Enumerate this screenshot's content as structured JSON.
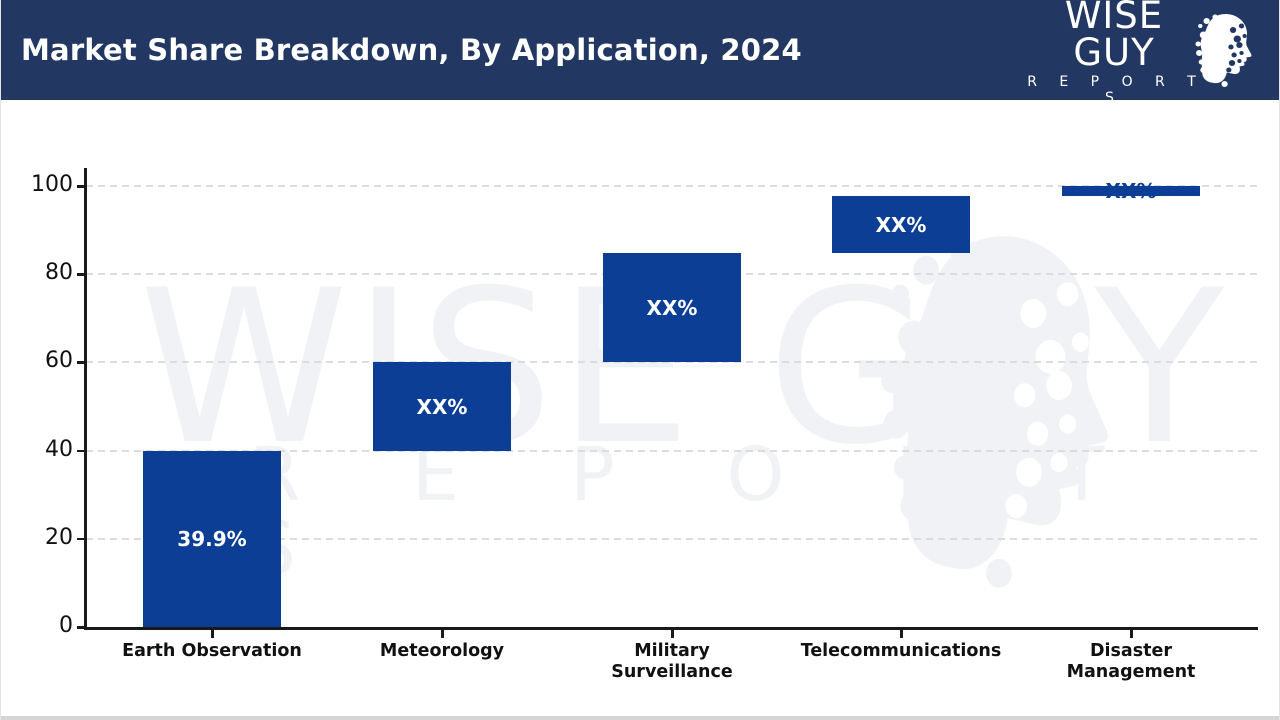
{
  "header": {
    "title": "Market Share Breakdown, By Application, 2024",
    "bg_color": "#223863",
    "logo": {
      "line1": "WISE GUY",
      "line2": "R E P O R T S"
    }
  },
  "watermark": {
    "line1": "WISE GUY",
    "line2": "R E P O R T S"
  },
  "chart_data": {
    "type": "bar",
    "variant": "waterfall",
    "title": "Market Share Breakdown, By Application, 2024",
    "categories": [
      "Earth Observation",
      "Meteorology",
      "Military Surveillance",
      "Telecommunications",
      "Disaster Management"
    ],
    "category_lines": [
      [
        "Earth Observation"
      ],
      [
        "Meteorology"
      ],
      [
        "Military",
        "Surveillance"
      ],
      [
        "Telecommunications"
      ],
      [
        "Disaster",
        "Management"
      ]
    ],
    "segments": [
      {
        "category": "Earth Observation",
        "start": 0,
        "end": 39.9,
        "value": 39.9,
        "label": "39.9%"
      },
      {
        "category": "Meteorology",
        "start": 39.9,
        "end": 60.0,
        "value": 20.1,
        "label": "XX%"
      },
      {
        "category": "Military Surveillance",
        "start": 60.0,
        "end": 84.7,
        "value": 24.7,
        "label": "XX%"
      },
      {
        "category": "Telecommunications",
        "start": 84.7,
        "end": 97.7,
        "value": 13.0,
        "label": "XX%"
      },
      {
        "category": "Disaster Management",
        "start": 97.7,
        "end": 100.0,
        "value": 2.3,
        "label": "XX%"
      }
    ],
    "ylim": [
      0,
      100
    ],
    "yticks": [
      0,
      20,
      40,
      60,
      80,
      100
    ],
    "xlabel": "",
    "ylabel": "",
    "grid": "horizontal-dashed",
    "legend": "none",
    "bar_color": "#0d3e96",
    "bar_label_color": "#ffffff",
    "axis_color": "#1a1a1a",
    "grid_color": "#dcdcdc"
  }
}
